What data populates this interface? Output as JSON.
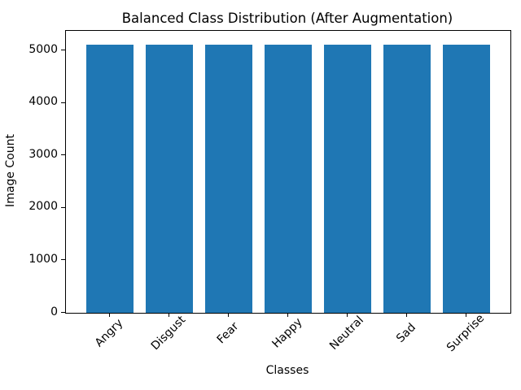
{
  "chart_data": {
    "type": "bar",
    "title": "Balanced Class Distribution (After Augmentation)",
    "xlabel": "Classes",
    "ylabel": "Image Count",
    "categories": [
      "Angry",
      "Disgust",
      "Fear",
      "Happy",
      "Neutral",
      "Sad",
      "Surprise"
    ],
    "values": [
      5120,
      5120,
      5120,
      5120,
      5120,
      5120,
      5120
    ],
    "yticks": [
      0,
      1000,
      2000,
      3000,
      4000,
      5000
    ],
    "ylim": [
      0,
      5376
    ],
    "xlim": [
      -0.74,
      6.74
    ],
    "bar_width_units": 0.8,
    "bar_color": "#1f77b4",
    "grid": false,
    "legend": null,
    "x_tick_rotation_deg": 45
  }
}
